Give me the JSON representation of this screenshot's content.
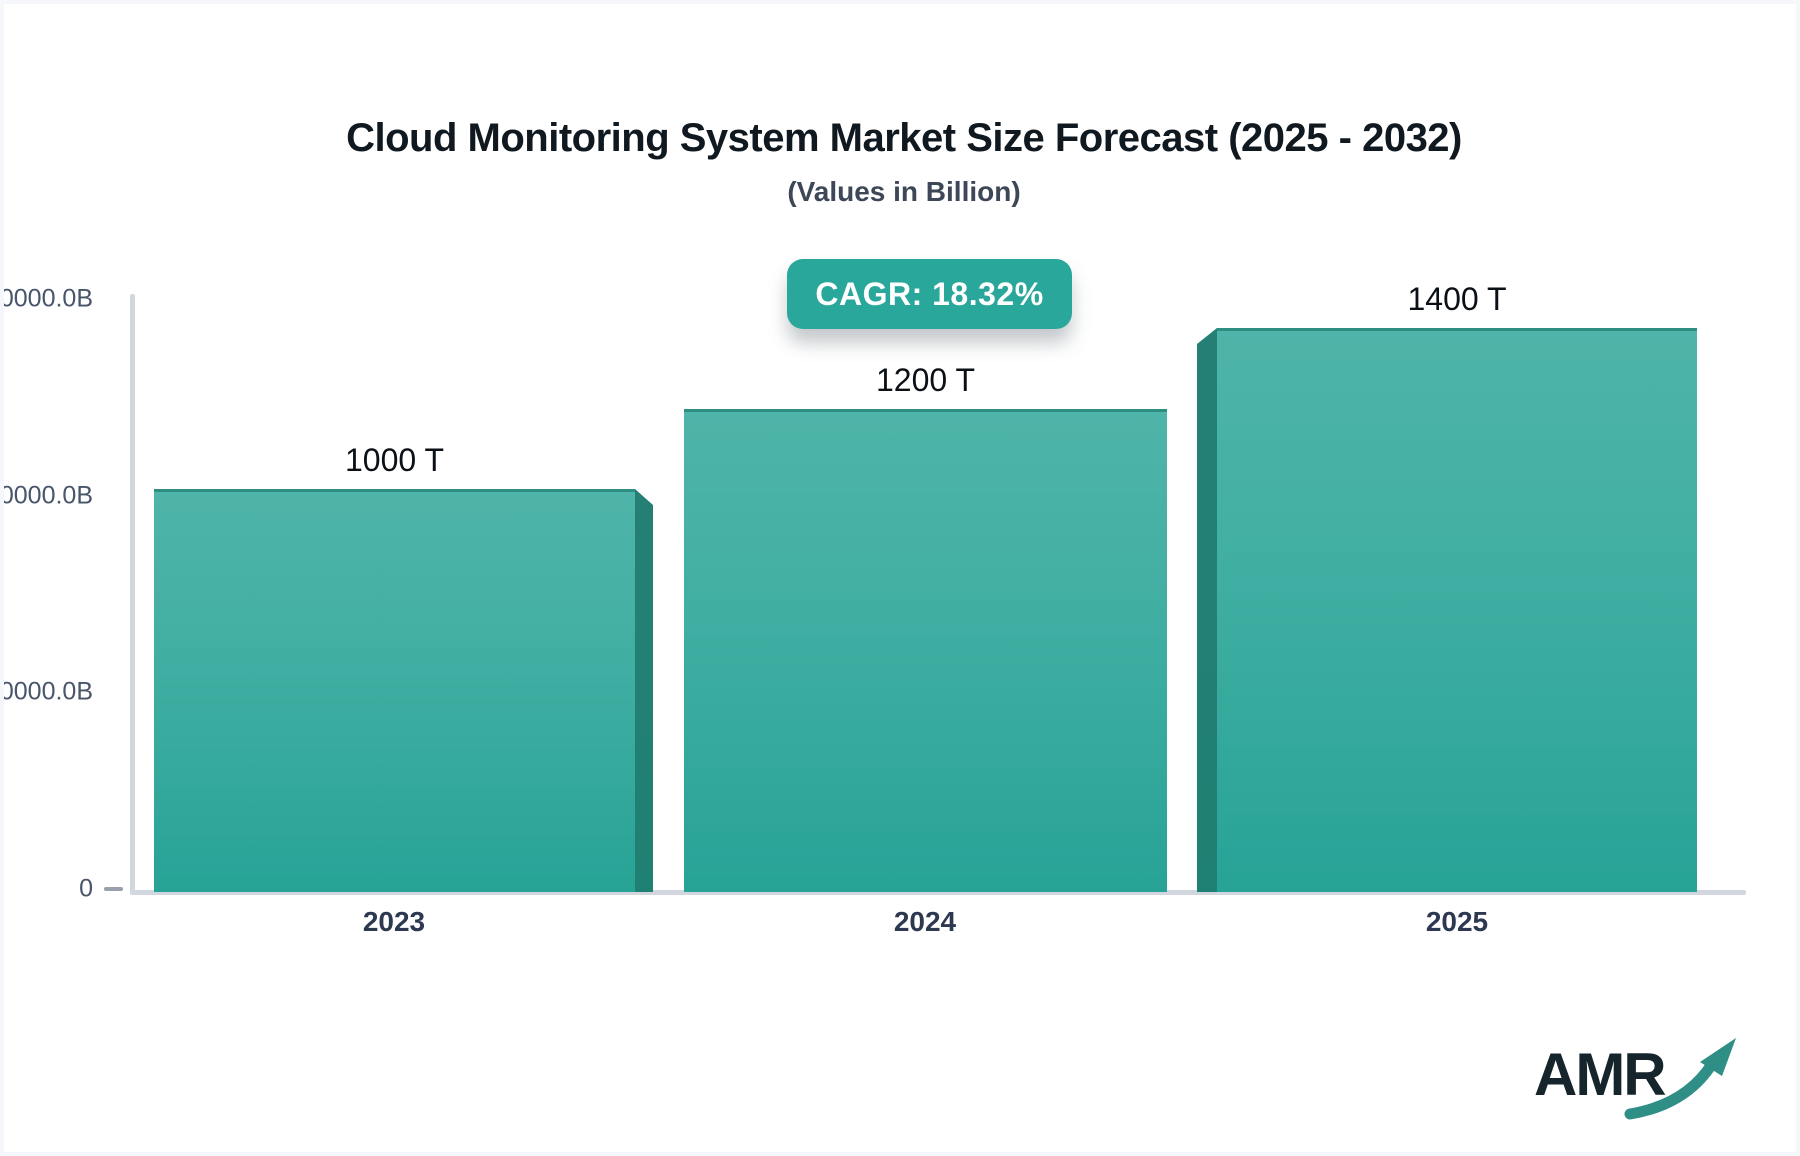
{
  "title": "Cloud Monitoring System Market Size Forecast (2025 - 2032)",
  "subtitle": "(Values in Billion)",
  "badge": {
    "label": "CAGR: 18.32%"
  },
  "logo": {
    "text": "AMR",
    "arrow_color": "#2f8e86",
    "text_color": "#16242b"
  },
  "colors": {
    "bar_top": "#4fb4a9",
    "bar_bottom": "#27a396",
    "bar_side": "#1f8173",
    "badge_background": "#2aa79b",
    "axis": "#d2d6de"
  },
  "chart_data": {
    "type": "bar",
    "title": "Cloud Monitoring System Market Size Forecast (2025 - 2032)",
    "subtitle": "(Values in Billion)",
    "categories": [
      "2023",
      "2024",
      "2025"
    ],
    "values": [
      1000,
      1200,
      1400
    ],
    "value_labels": [
      "1000 T",
      "1200 T",
      "1400 T"
    ],
    "unit": "T",
    "annotation": "CAGR: 18.32%",
    "y_axis": {
      "tick_labels": [
        "0000.0B",
        "0000.0B",
        "0000.0B",
        "0"
      ],
      "ylim": [
        0,
        1480
      ]
    },
    "xlabel": "",
    "ylabel": "",
    "grid": false,
    "legend": false,
    "bar_style": "3d-gradient-teal"
  }
}
